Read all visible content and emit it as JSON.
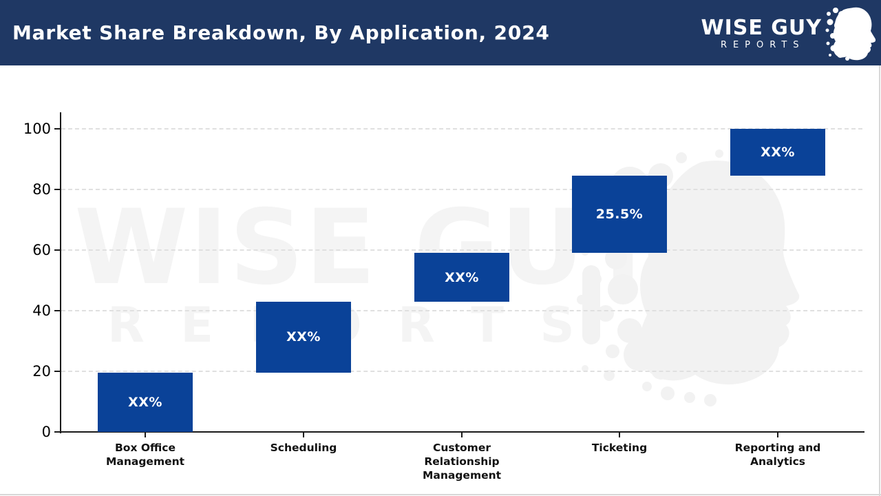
{
  "header": {
    "title": "Market Share Breakdown, By Application, 2024",
    "logo": {
      "name": "WISE GUY",
      "subtext": "REPORTS"
    }
  },
  "watermark": {
    "line1": "WISE GUY",
    "line2": "R E P O R T S"
  },
  "colors": {
    "header_bg": "#1f3864",
    "bar": "#0a4298",
    "bar_label": "#ffffff",
    "axis": "#1a1a1a",
    "gridline": "#e0e0e0",
    "tick_label": "#000000",
    "watermark": "#f4f4f4",
    "background": "#ffffff"
  },
  "chart_data": {
    "type": "bar",
    "subtype": "waterfall",
    "title": "Market Share Breakdown, By Application, 2024",
    "xlabel": "",
    "ylabel": "",
    "unit": "%",
    "ylim": [
      0,
      105
    ],
    "grid": "horizontal-dashed",
    "legend": "none",
    "categories": [
      "Box Office Management",
      "Scheduling",
      "Customer Relationship Management",
      "Ticketing",
      "Reporting and Analytics"
    ],
    "tick_labels": [
      "Box Office\nManagement",
      "Scheduling",
      "Customer\nRelationship\nManagement",
      "Ticketing",
      "Reporting and\nAnalytics"
    ],
    "y_ticks": [
      0,
      20,
      40,
      60,
      80,
      100
    ],
    "segments": [
      {
        "category": "Box Office Management",
        "start": 0,
        "end": 19.5,
        "value": 19.5,
        "label": "XX%"
      },
      {
        "category": "Scheduling",
        "start": 19.5,
        "end": 43,
        "value": 23.5,
        "label": "XX%"
      },
      {
        "category": "Customer Relationship Management",
        "start": 43,
        "end": 59,
        "value": 16,
        "label": "XX%"
      },
      {
        "category": "Ticketing",
        "start": 59,
        "end": 84.5,
        "value": 25.5,
        "label": "25.5%"
      },
      {
        "category": "Reporting and Analytics",
        "start": 84.5,
        "end": 100,
        "value": 15.5,
        "label": "XX%"
      }
    ]
  }
}
